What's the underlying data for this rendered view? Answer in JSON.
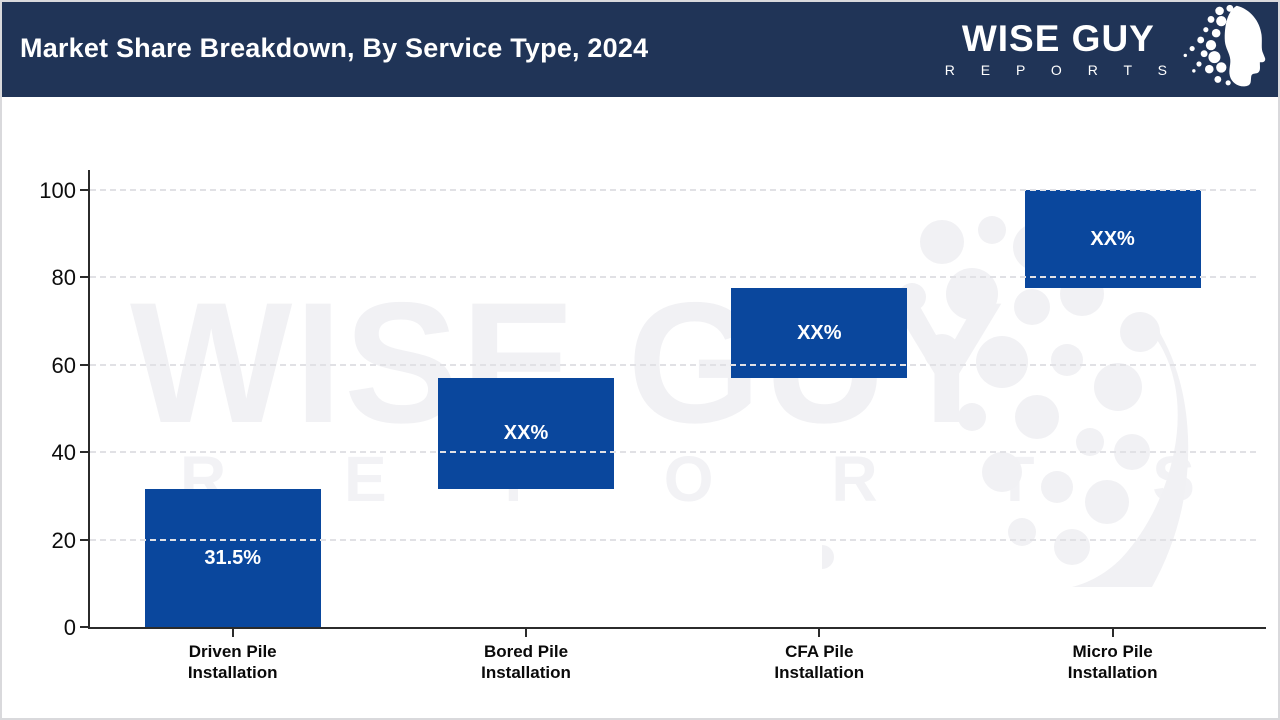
{
  "header": {
    "title": "Market Share Breakdown, By Service Type, 2024",
    "logo_line1": "WISE GUY",
    "logo_line2": "R E P O R T S"
  },
  "watermark": {
    "line1": "WISE GUY",
    "line2": "R E P O R T S"
  },
  "colors": {
    "header_bg": "#203457",
    "bar_fill": "#0a479d",
    "grid_line": "#e1e1e5",
    "axis": "#2b2b2b",
    "watermark": "#f1f1f4",
    "label_on_bar": "#ffffff"
  },
  "chart_data": {
    "type": "bar",
    "variant": "waterfall-floating-bars",
    "title": "Market Share Breakdown, By Service Type, 2024",
    "xlabel": "",
    "ylabel": "",
    "ylim": [
      0,
      100
    ],
    "yticks": [
      0,
      20,
      40,
      60,
      80,
      100
    ],
    "grid": "dashed horizontal",
    "legend": "none",
    "categories": [
      "Driven Pile Installation",
      "Bored Pile Installation",
      "CFA Pile Installation",
      "Micro Pile Installation"
    ],
    "bars": [
      {
        "line1": "Driven Pile",
        "line2": "Installation",
        "start": 0,
        "end": 31.5,
        "label": "31.5%"
      },
      {
        "line1": "Bored Pile",
        "line2": "Installation",
        "start": 31.5,
        "end": 57,
        "label": "XX%"
      },
      {
        "line1": "CFA Pile",
        "line2": "Installation",
        "start": 57,
        "end": 77.5,
        "label": "XX%"
      },
      {
        "line1": "Micro Pile",
        "line2": "Installation",
        "start": 77.5,
        "end": 100,
        "label": "XX%"
      }
    ]
  }
}
